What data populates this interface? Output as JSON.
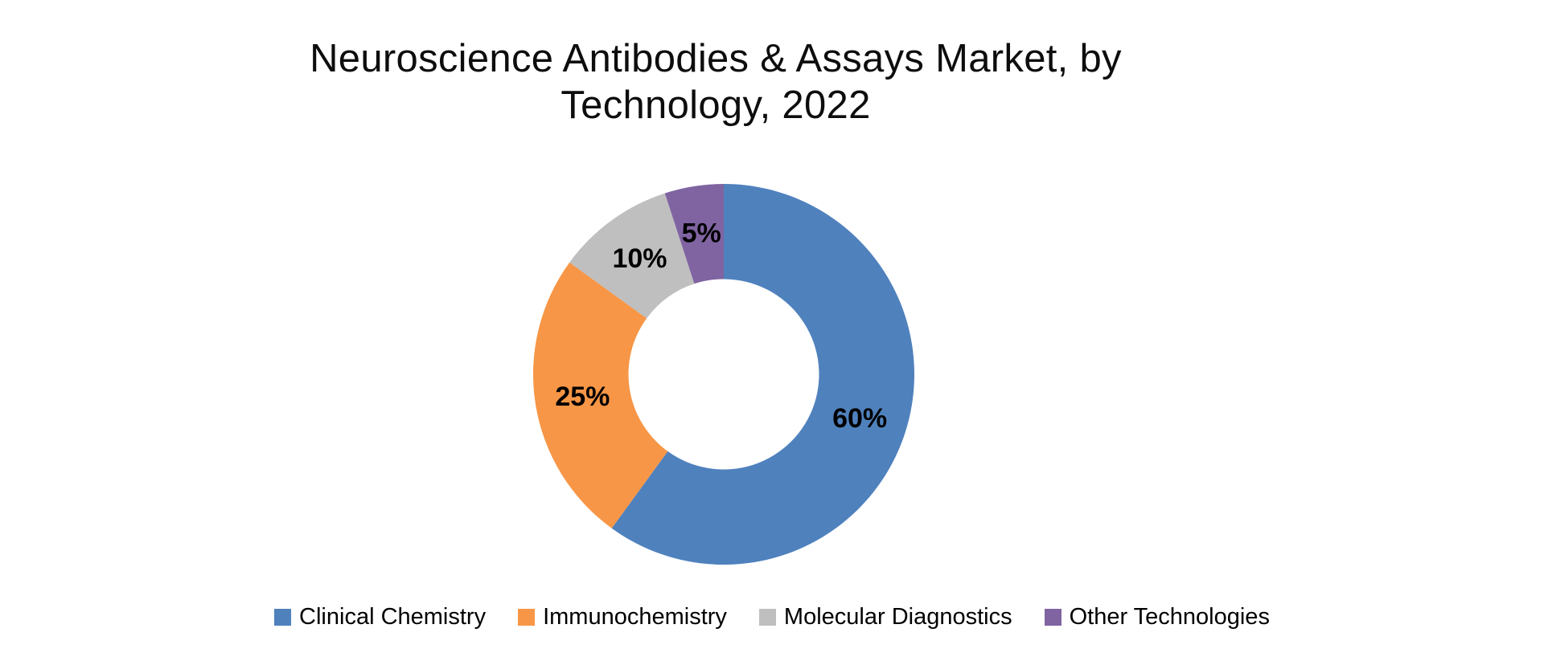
{
  "chart_title": {
    "text": "Neuroscience Antibodies & Assays Market, by Technology, 2022",
    "line1": "Neuroscience Antibodies & Assays Market, by",
    "line2": "Technology, 2022"
  },
  "chart_data": {
    "type": "pie",
    "subtype": "donut",
    "title": "Neuroscience Antibodies & Assays Market, by Technology, 2022",
    "categories": [
      "Clinical Chemistry",
      "Immunochemistry",
      "Molecular Diagnostics",
      "Other Technologies"
    ],
    "values": [
      60,
      25,
      10,
      5
    ],
    "data_labels": [
      "60%",
      "25%",
      "10%",
      "5%"
    ],
    "colors": [
      "#4F81BD",
      "#F79646",
      "#BFBFBF",
      "#8064A2"
    ],
    "start_angle_deg": 0,
    "direction": "clockwise",
    "hole_ratio": 0.5,
    "hole_color": "#FFFFFF",
    "data_label_color": "#000000",
    "legend_position": "bottom",
    "background": "#FFFFFF"
  },
  "legend": {
    "items": [
      {
        "label": "Clinical Chemistry",
        "color": "#4F81BD"
      },
      {
        "label": "Immunochemistry",
        "color": "#F79646"
      },
      {
        "label": "Molecular Diagnostics",
        "color": "#BFBFBF"
      },
      {
        "label": "Other Technologies",
        "color": "#8064A2"
      }
    ]
  }
}
